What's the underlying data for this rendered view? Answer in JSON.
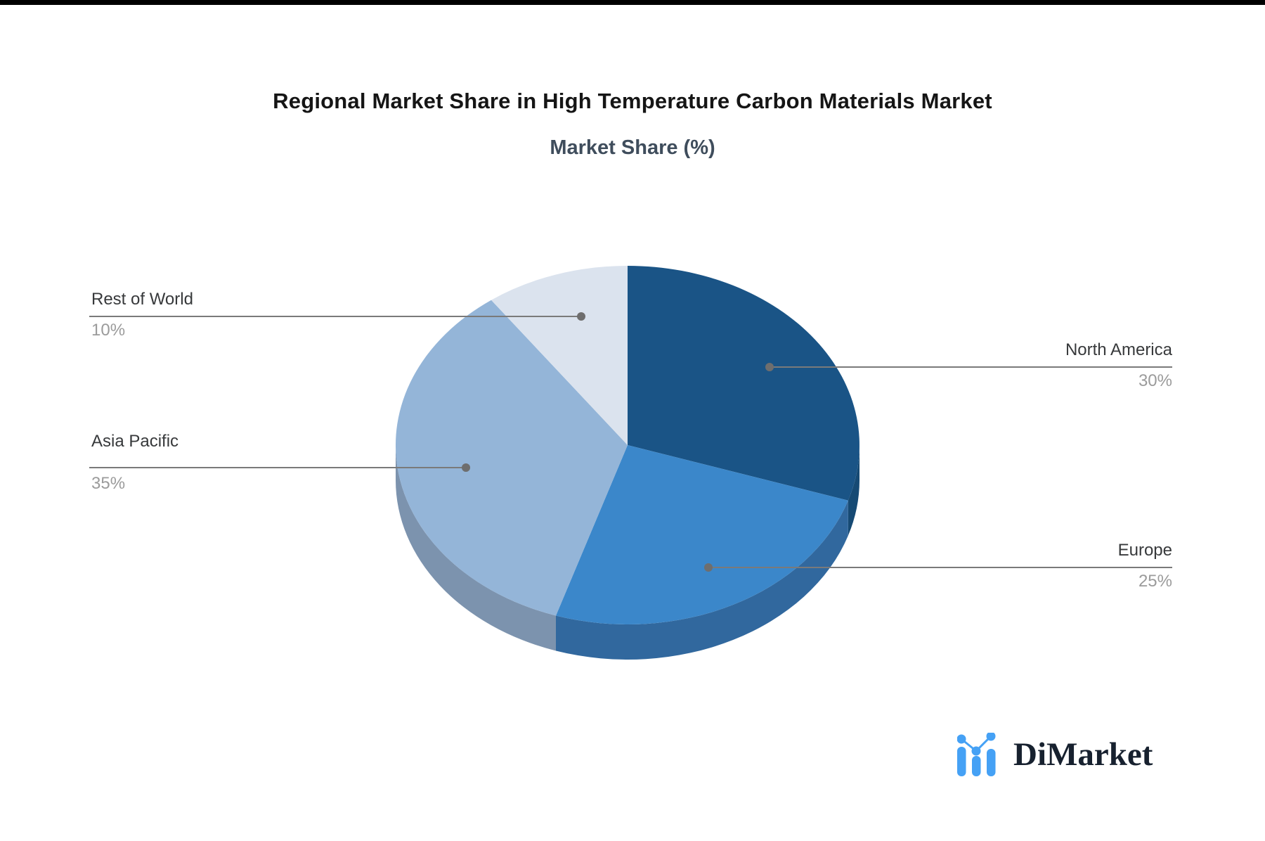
{
  "title": "Regional Market Share in High Temperature Carbon Materials Market",
  "subtitle": "Market Share (%)",
  "brand": {
    "name": "DiMarket"
  },
  "chart_data": {
    "type": "pie",
    "title": "Regional Market Share in High Temperature Carbon Materials Market",
    "subtitle": "Market Share (%)",
    "unit": "%",
    "style": "3d-pie",
    "start_angle_deg": 0,
    "direction": "clockwise",
    "legend_position": "none",
    "slices": [
      {
        "label": "North America",
        "value": 30,
        "pct_label": "30%",
        "color": "#1a5486",
        "side_color": "#164a74"
      },
      {
        "label": "Europe",
        "value": 25,
        "pct_label": "25%",
        "color": "#3b87ca",
        "side_color": "#31689e"
      },
      {
        "label": "Asia Pacific",
        "value": 35,
        "pct_label": "35%",
        "color": "#94b5d8",
        "side_color": "#7c93ae"
      },
      {
        "label": "Rest of World",
        "value": 10,
        "pct_label": "10%",
        "color": "#dbe3ee",
        "side_color": "#aab6c6"
      }
    ],
    "leader_line_color": "#7a7a7a",
    "label_color": "#37393b",
    "pct_color": "#9b9b9b"
  }
}
